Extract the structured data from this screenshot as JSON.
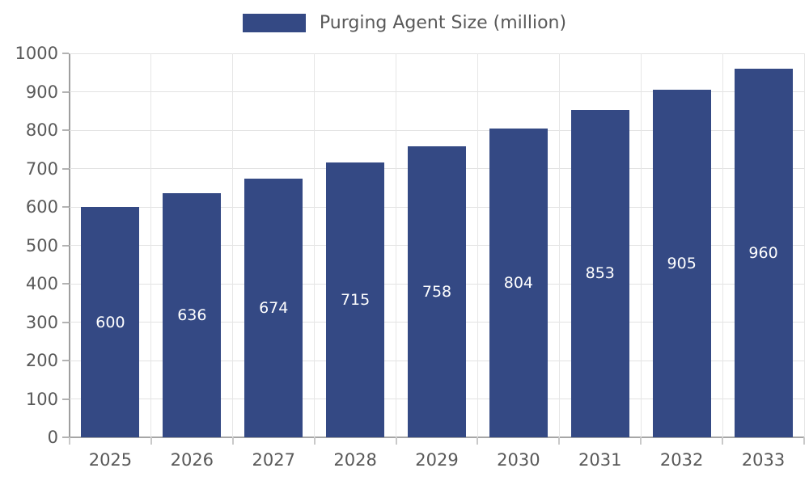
{
  "legend": {
    "label": "Purging Agent Size (million)"
  },
  "chart_data": {
    "type": "bar",
    "title": "Purging Agent Size (million)",
    "categories": [
      "2025",
      "2026",
      "2027",
      "2028",
      "2029",
      "2030",
      "2031",
      "2032",
      "2033"
    ],
    "values": [
      600,
      636,
      674,
      715,
      758,
      804,
      853,
      905,
      960
    ],
    "series": [
      {
        "name": "Purging Agent Size (million)",
        "values": [
          600,
          636,
          674,
          715,
          758,
          804,
          853,
          905,
          960
        ]
      }
    ],
    "xlabel": "",
    "ylabel": "",
    "ylim": [
      0,
      1000
    ],
    "yticks": [
      0,
      100,
      200,
      300,
      400,
      500,
      600,
      700,
      800,
      900,
      1000
    ],
    "grid": true,
    "legend_position": "top-center",
    "bar_color": "#344984",
    "bar_label_color": "#ffffff",
    "axis_text_color": "#595959",
    "gridline_color": "#e2e2e2"
  }
}
